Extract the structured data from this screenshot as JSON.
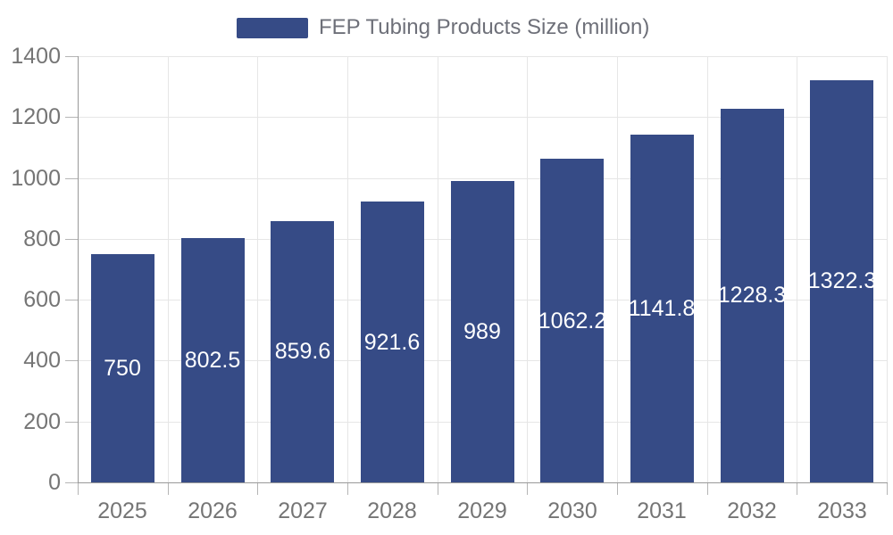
{
  "legend": {
    "label": "FEP Tubing Products Size (million)"
  },
  "colors": {
    "bar": "#364B86",
    "bar_label": "#ffffff",
    "legend_text": "#6E7079",
    "axis_label": "#757575",
    "grid": "#e6e6e6",
    "axis_line": "#999999",
    "tick": "#b5b5b5",
    "background": "#ffffff"
  },
  "chart_data": {
    "type": "bar",
    "title": "FEP Tubing Products Size (million)",
    "categories": [
      "2025",
      "2026",
      "2027",
      "2028",
      "2029",
      "2030",
      "2031",
      "2032",
      "2033"
    ],
    "values": [
      750,
      802.5,
      859.6,
      921.6,
      989,
      1062.2,
      1141.8,
      1228.3,
      1322.3
    ],
    "value_labels": [
      "750",
      "802.5",
      "859.6",
      "921.6",
      "989",
      "1062.2",
      "1141.8",
      "1228.3",
      "1322.3"
    ],
    "xlabel": "",
    "ylabel": "",
    "ylim": [
      0,
      1400
    ],
    "ytick_step": 200,
    "yticks": [
      0,
      200,
      400,
      600,
      800,
      1000,
      1200,
      1400
    ],
    "grid": true,
    "legend_position": "top-center",
    "bar_label_position": "inside-middle"
  }
}
